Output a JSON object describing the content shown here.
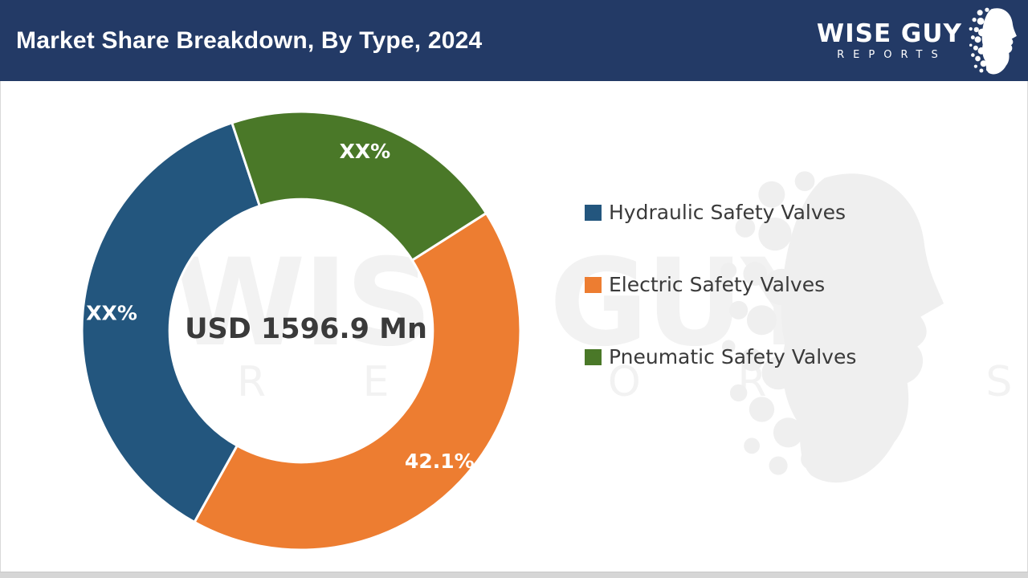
{
  "header": {
    "title": "Market Share Breakdown, By Type, 2024",
    "bg_color": "#233A66",
    "logo": {
      "line1": "WISE GUY",
      "line2": "REPORTS"
    }
  },
  "watermark": {
    "line1": "WISE GUY",
    "line2": "R E P O R T S"
  },
  "chart_data": {
    "type": "pie",
    "donut": true,
    "title": "Market Share Breakdown, By Type, 2024",
    "center_label": "USD 1596.9 Mn",
    "start_angle": 108.4,
    "direction": "counterclockwise",
    "inner_radius_ratio": 0.6,
    "label_radius_ratio": 0.868,
    "label_color": "#FFFFFF",
    "legend_position": "right",
    "series": [
      {
        "name": "Hydraulic Safety Valves",
        "value": 36.8,
        "display_label": "XX%",
        "color": "#23567E"
      },
      {
        "name": "Electric Safety Valves",
        "value": 42.1,
        "display_label": "42.1%",
        "color": "#ED7D31"
      },
      {
        "name": "Pneumatic Safety Valves",
        "value": 21.1,
        "display_label": "XX%",
        "color": "#4A7828"
      }
    ]
  },
  "colors": {
    "text_dark": "#3A3A3A",
    "watermark_gray": "#F2F2F2",
    "footer_bar": "#D6D6D6"
  }
}
